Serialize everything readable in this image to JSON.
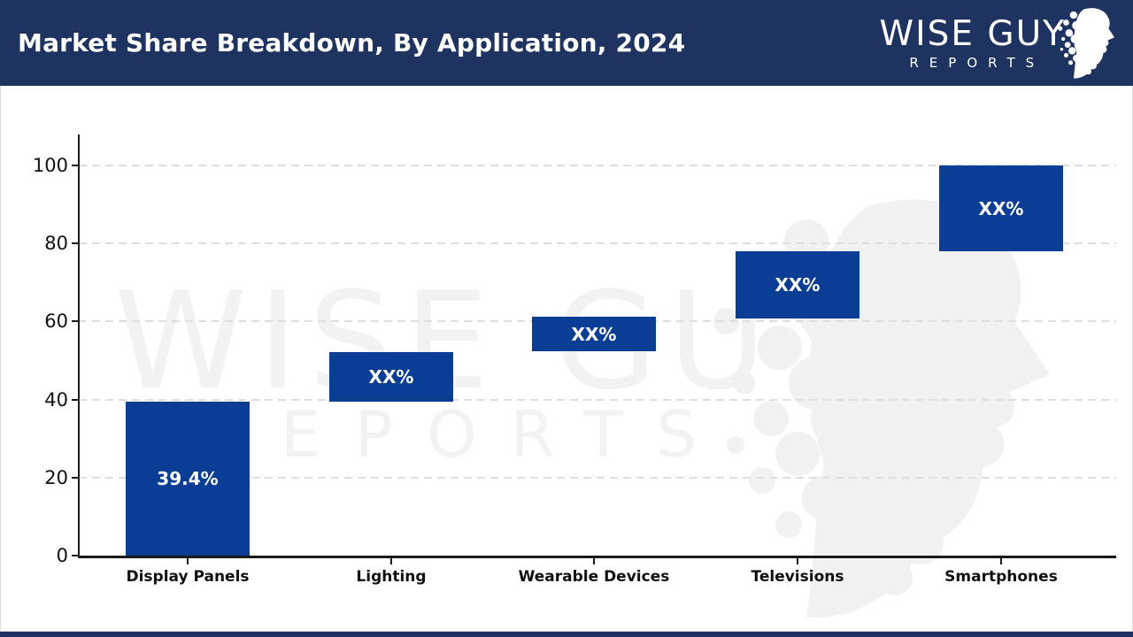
{
  "header": {
    "title": "Market Share Breakdown, By Application, 2024",
    "logo": {
      "wordmark": "WISE GUY",
      "sub": "REPORTS"
    }
  },
  "watermark": {
    "line1": "WISE GUY",
    "line2": "REPORTS"
  },
  "colors": {
    "header_navy": "#1e335f",
    "bar_blue": "#0a3e94",
    "bar_label_white": "#ffffff",
    "gridline_gray": "#dedede",
    "axis_black": "#1a1a1a",
    "watermark_gray": "#f2f2f2"
  },
  "chart_data": {
    "type": "bar",
    "subtype": "waterfall",
    "title": "Market Share Breakdown, By Application, 2024",
    "categories": [
      "Display Panels",
      "Lighting",
      "Wearable Devices",
      "Televisions",
      "Smartphones"
    ],
    "segments": [
      {
        "category": "Display Panels",
        "start": 0,
        "end": 39.4,
        "label": "39.4%"
      },
      {
        "category": "Lighting",
        "start": 39.4,
        "end": 52.2,
        "label": "XX%"
      },
      {
        "category": "Wearable Devices",
        "start": 52.3,
        "end": 61.2,
        "label": "XX%"
      },
      {
        "category": "Televisions",
        "start": 60.7,
        "end": 77.9,
        "label": "XX%"
      },
      {
        "category": "Smartphones",
        "start": 77.9,
        "end": 100,
        "label": "XX%"
      }
    ],
    "xlabel": "",
    "ylabel": "",
    "ylim": [
      0,
      100
    ],
    "yticks": [
      0,
      20,
      40,
      60,
      80,
      100
    ],
    "grid": "horizontal-dashed",
    "legend": "none"
  }
}
